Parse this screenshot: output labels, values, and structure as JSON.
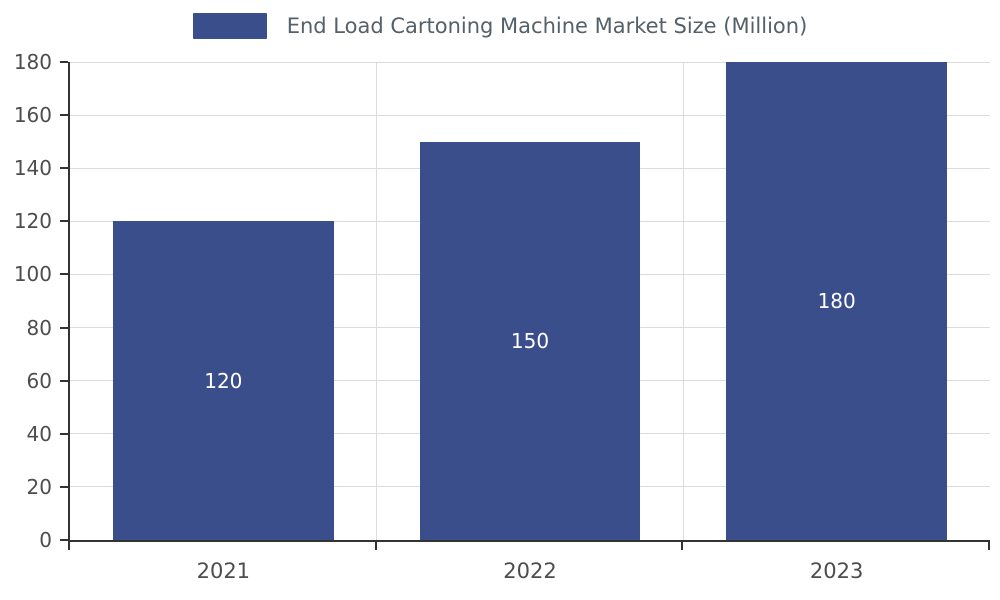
{
  "legend": {
    "label": "End Load Cartoning Machine Market Size (Million)"
  },
  "chart_data": {
    "type": "bar",
    "title": "End Load Cartoning Machine Market Size (Million)",
    "categories": [
      "2021",
      "2022",
      "2023"
    ],
    "values": [
      120,
      150,
      180
    ],
    "xlabel": "",
    "ylabel": "",
    "ylim": [
      0,
      180
    ],
    "ytick_step": 20,
    "yticks": [
      0,
      20,
      40,
      60,
      80,
      100,
      120,
      140,
      160,
      180
    ],
    "grid": true,
    "legend_position": "top",
    "bar_color": "#3A4E8C",
    "value_label_color": "#ffffff",
    "axis_color": "#333333",
    "grid_color": "#dcdcdc",
    "tick_label_color": "#4d4d4d",
    "legend_text_color": "#566069"
  }
}
